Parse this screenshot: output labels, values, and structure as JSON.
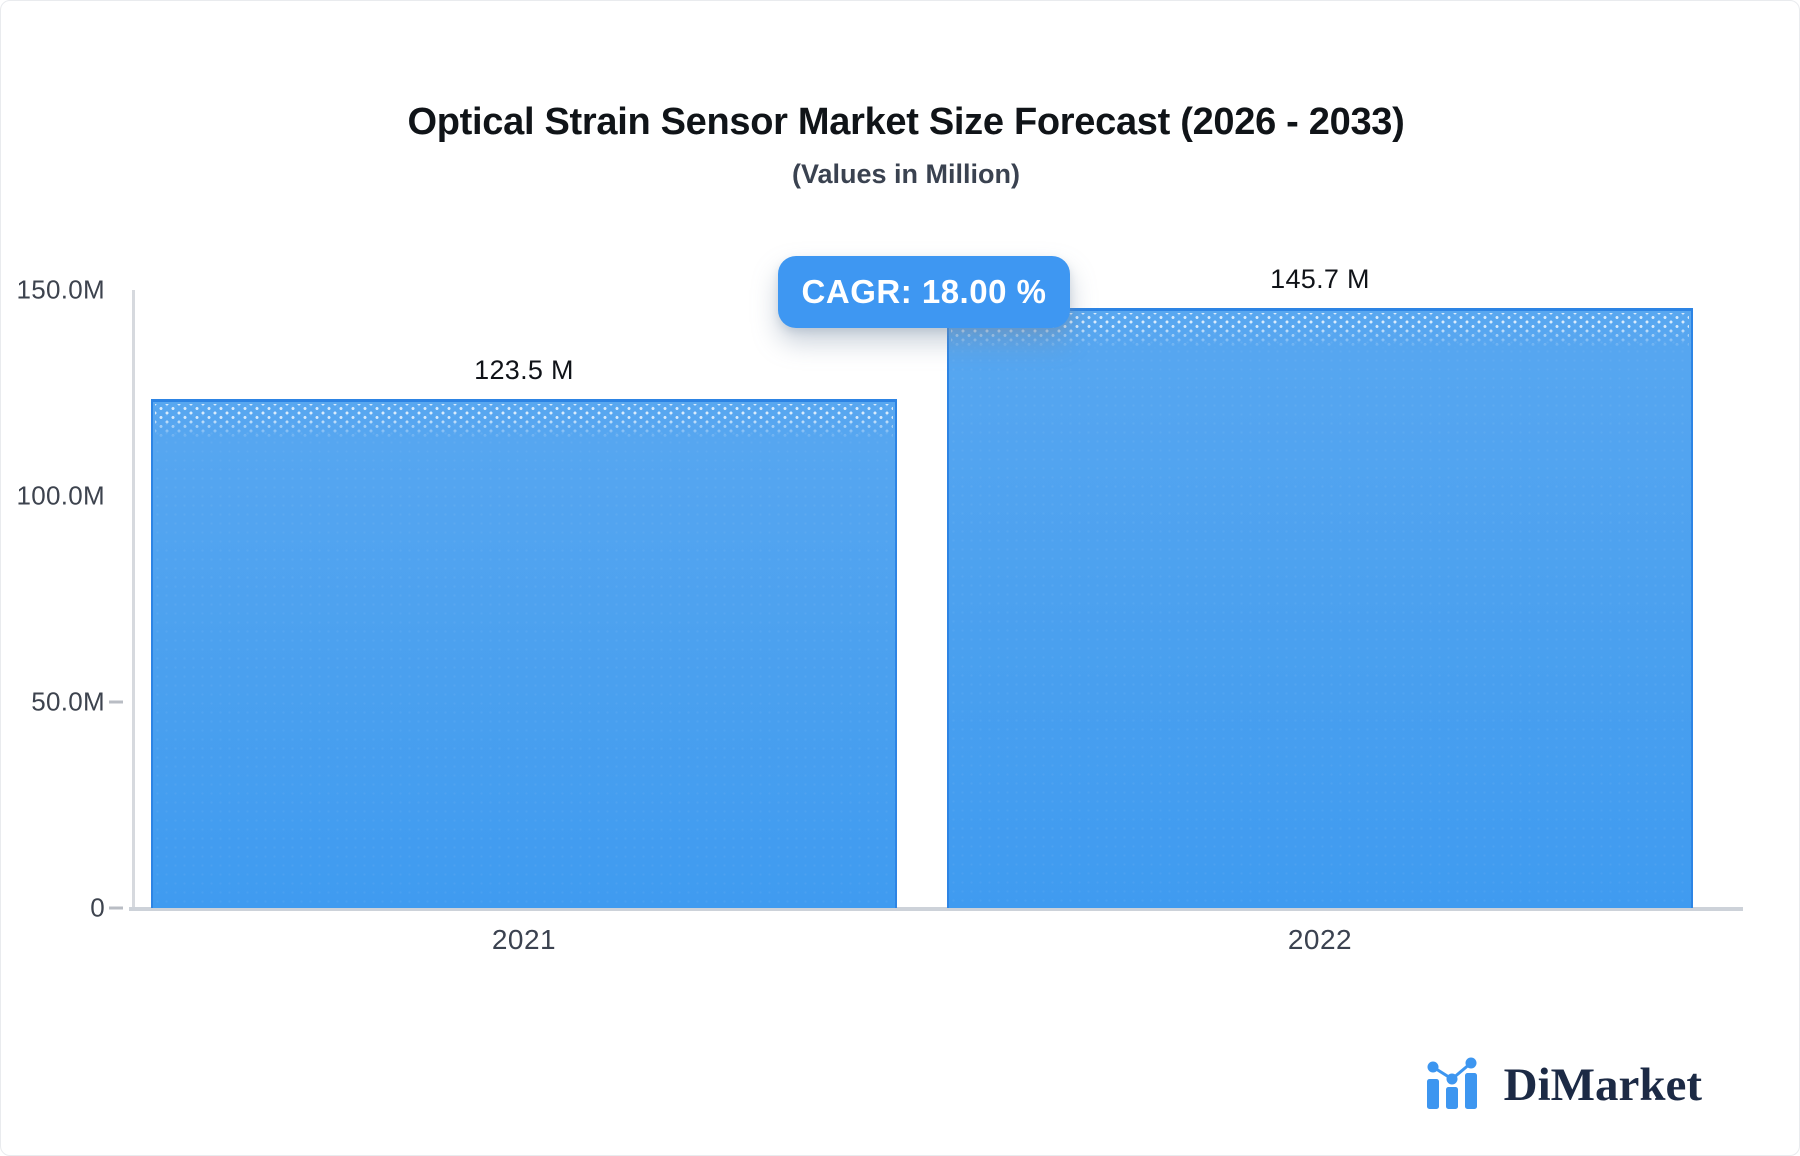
{
  "header": {
    "title": "Optical Strain Sensor Market Size Forecast (2026 - 2033)",
    "subtitle": "(Values in Million)"
  },
  "cagr_badge": {
    "label": "CAGR: 18.00 %"
  },
  "chart_data": {
    "type": "bar",
    "title": "Optical Strain Sensor Market Size Forecast (2026 - 2033)",
    "subtitle": "(Values in Million)",
    "categories": [
      "2021",
      "2022"
    ],
    "values": [
      123.5,
      145.7
    ],
    "value_labels": [
      "123.5 M",
      "145.7 M"
    ],
    "cagr_percent": 18.0,
    "ylim": [
      0,
      150
    ],
    "yticks": [
      {
        "value": 150,
        "label": "150.0M",
        "dash": false
      },
      {
        "value": 100,
        "label": "100.0M",
        "dash": false
      },
      {
        "value": 50,
        "label": "50.0M",
        "dash": true
      },
      {
        "value": 0,
        "label": "0",
        "dash": true
      }
    ],
    "grid": false,
    "legend": false,
    "bar_style": {
      "fill_top": "#58a7f0",
      "fill_bottom": "#3f9bf0",
      "border": "#2d84e4",
      "dot_overlay": "#ffffff"
    }
  },
  "axis_style": {
    "y_axis_line": "#d6d9de",
    "x_axis_line": "#cdd2d9",
    "tick": "#b9bdc4",
    "label_color": "#3d434e"
  },
  "branding": {
    "logo_text": "DiMarket",
    "logo_icon": "mini-bar-chart",
    "logo_accent": "#3d96f0",
    "logo_text_color": "#1c2a45"
  }
}
